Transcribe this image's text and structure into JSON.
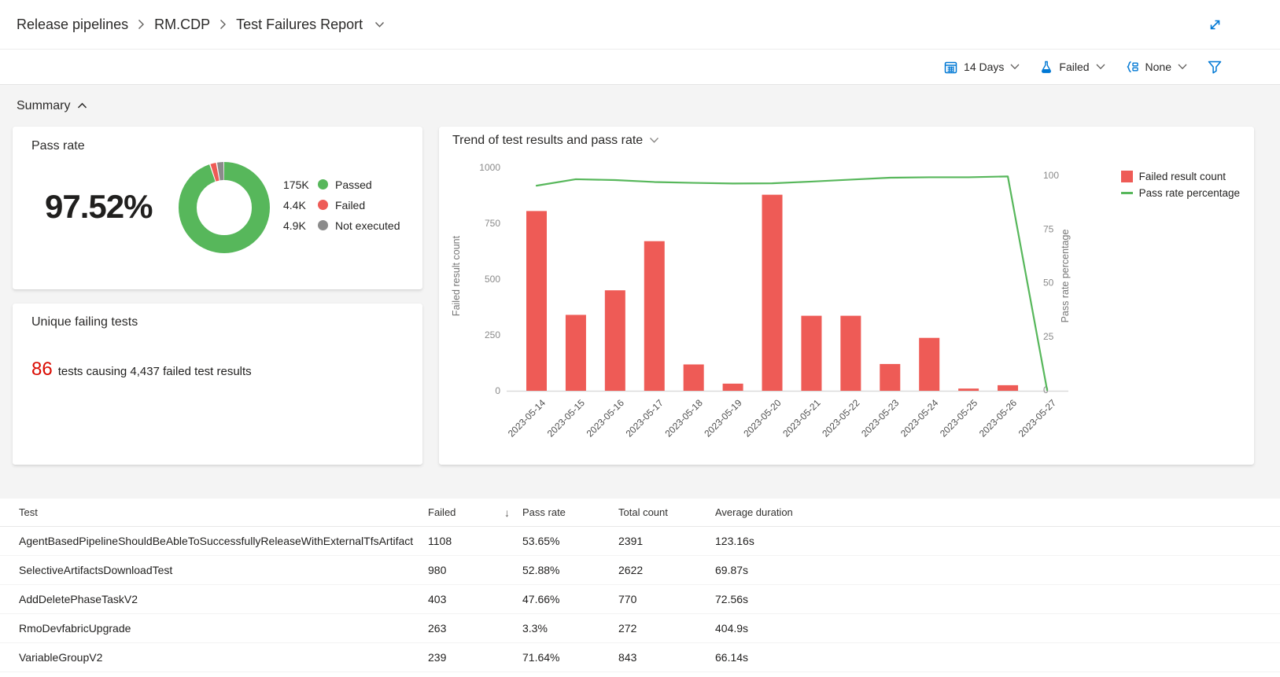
{
  "breadcrumb": {
    "items": [
      {
        "label": "Release pipelines"
      },
      {
        "label": "RM.CDP"
      },
      {
        "label": "Test Failures Report"
      }
    ]
  },
  "header_icons": {
    "expand": "expand-diagonal-arrows-icon"
  },
  "filter_bar": {
    "period": {
      "icon": "calendar-icon",
      "label": "14 Days"
    },
    "outcome": {
      "icon": "flask-icon",
      "label": "Failed"
    },
    "group_by": {
      "icon": "group-by-icon",
      "label": "None"
    },
    "filter_icon": "funnel-icon"
  },
  "summary_section": {
    "title": "Summary"
  },
  "pass_rate_card": {
    "title": "Pass rate",
    "value": "97.52%"
  },
  "unique_failing_card": {
    "title": "Unique failing tests",
    "count": "86",
    "description": "tests causing 4,437 failed test results"
  },
  "trend_card": {
    "title": "Trend of test results and pass rate"
  },
  "chart_data": [
    {
      "type": "pie",
      "title": "Pass rate",
      "donut": true,
      "labels": [
        "Passed",
        "Failed",
        "Not executed"
      ],
      "value_labels": [
        "175K",
        "4.4K",
        "4.9K"
      ],
      "values": [
        175000,
        4400,
        4900
      ],
      "colors": [
        "#57b75b",
        "#ee5b56",
        "#8b8b8b"
      ],
      "headline_value": "97.52%"
    },
    {
      "type": "bar+line",
      "title": "Trend of test results and pass rate",
      "categories": [
        "2023-05-14",
        "2023-05-15",
        "2023-05-16",
        "2023-05-17",
        "2023-05-18",
        "2023-05-19",
        "2023-05-20",
        "2023-05-21",
        "2023-05-22",
        "2023-05-23",
        "2023-05-24",
        "2023-05-25",
        "2023-05-26",
        "2023-05-27"
      ],
      "series": [
        {
          "name": "Failed result count",
          "type": "bar",
          "axis": "left",
          "color": "#ee5b56",
          "values": [
            805,
            340,
            450,
            670,
            118,
            32,
            878,
            336,
            336,
            120,
            237,
            10,
            25,
            0
          ]
        },
        {
          "name": "Pass rate percentage",
          "type": "line",
          "axis": "right",
          "color": "#57b75b",
          "values": [
            95.2,
            98.2,
            97.8,
            96.9,
            96.5,
            96.2,
            96.3,
            97.1,
            98,
            98.9,
            99.1,
            99.1,
            99.5,
            0
          ]
        }
      ],
      "left_axis": {
        "title": "Failed result count",
        "ticks": [
          0,
          250,
          500,
          750,
          1000
        ],
        "range": [
          0,
          1000
        ]
      },
      "right_axis": {
        "title": "Pass rate percentage",
        "ticks": [
          0,
          25,
          50,
          75,
          100
        ],
        "range": [
          0,
          100
        ]
      },
      "legend_position": "top-right",
      "grid": false
    }
  ],
  "table": {
    "columns": [
      {
        "label": "Test"
      },
      {
        "label": "Failed",
        "sort": "desc"
      },
      {
        "label": "Pass rate"
      },
      {
        "label": "Total count"
      },
      {
        "label": "Average duration"
      }
    ],
    "rows": [
      {
        "test": "AgentBasedPipelineShouldBeAbleToSuccessfullyReleaseWithExternalTfsArtifact",
        "failed": "1108",
        "pass_rate": "53.65%",
        "total_count": "2391",
        "avg_duration": "123.16s"
      },
      {
        "test": "SelectiveArtifactsDownloadTest",
        "failed": "980",
        "pass_rate": "52.88%",
        "total_count": "2622",
        "avg_duration": "69.87s"
      },
      {
        "test": "AddDeletePhaseTaskV2",
        "failed": "403",
        "pass_rate": "47.66%",
        "total_count": "770",
        "avg_duration": "72.56s"
      },
      {
        "test": "RmoDevfabricUpgrade",
        "failed": "263",
        "pass_rate": "3.3%",
        "total_count": "272",
        "avg_duration": "404.9s"
      },
      {
        "test": "VariableGroupV2",
        "failed": "239",
        "pass_rate": "71.64%",
        "total_count": "843",
        "avg_duration": "66.14s"
      }
    ]
  },
  "colors": {
    "accent_blue": "#0078d4",
    "failed_red": "#ee5b56",
    "passed_green": "#57b75b",
    "not_executed_gray": "#8b8b8b",
    "failed_text_red": "#da0a00"
  }
}
